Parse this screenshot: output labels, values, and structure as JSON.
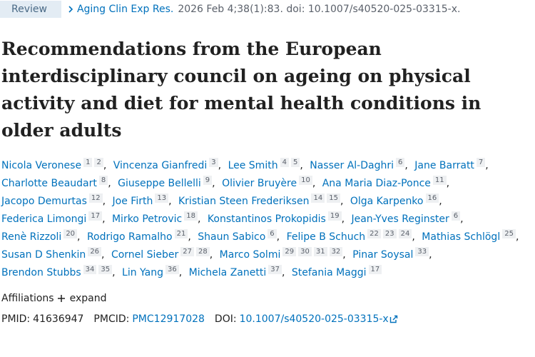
{
  "header": {
    "badge": "Review",
    "journal": "Aging Clin Exp Res.",
    "citation": "2026 Feb 4;38(1):83. doi: 10.1007/s40520-025-03315-x."
  },
  "title": "Recommendations from the European interdisciplinary council on ageing on physical activity and diet for mental health conditions in older adults",
  "authors": [
    {
      "name": "Nicola Veronese",
      "affiliations": [
        "1",
        "2"
      ]
    },
    {
      "name": "Vincenza Gianfredi",
      "affiliations": [
        "3"
      ]
    },
    {
      "name": "Lee Smith",
      "affiliations": [
        "4",
        "5"
      ]
    },
    {
      "name": "Nasser Al-Daghri",
      "affiliations": [
        "6"
      ]
    },
    {
      "name": "Jane Barratt",
      "affiliations": [
        "7"
      ]
    },
    {
      "name": "Charlotte Beaudart",
      "affiliations": [
        "8"
      ]
    },
    {
      "name": "Giuseppe Bellelli",
      "affiliations": [
        "9"
      ]
    },
    {
      "name": "Olivier Bruyère",
      "affiliations": [
        "10"
      ]
    },
    {
      "name": "Ana Maria Diaz-Ponce",
      "affiliations": [
        "11"
      ]
    },
    {
      "name": "Jacopo Demurtas",
      "affiliations": [
        "12"
      ]
    },
    {
      "name": "Joe Firth",
      "affiliations": [
        "13"
      ]
    },
    {
      "name": "Kristian Steen Frederiksen",
      "affiliations": [
        "14",
        "15"
      ]
    },
    {
      "name": "Olga Karpenko",
      "affiliations": [
        "16"
      ]
    },
    {
      "name": "Federica Limongi",
      "affiliations": [
        "17"
      ]
    },
    {
      "name": "Mirko Petrovic",
      "affiliations": [
        "18"
      ]
    },
    {
      "name": "Konstantinos Prokopidis",
      "affiliations": [
        "19"
      ]
    },
    {
      "name": "Jean-Yves Reginster",
      "affiliations": [
        "6"
      ]
    },
    {
      "name": "Renè Rizzoli",
      "affiliations": [
        "20"
      ]
    },
    {
      "name": "Rodrigo Ramalho",
      "affiliations": [
        "21"
      ]
    },
    {
      "name": "Shaun Sabico",
      "affiliations": [
        "6"
      ]
    },
    {
      "name": "Felipe B Schuch",
      "affiliations": [
        "22",
        "23",
        "24"
      ]
    },
    {
      "name": "Mathias Schlögl",
      "affiliations": [
        "25"
      ]
    },
    {
      "name": "Susan D Shenkin",
      "affiliations": [
        "26"
      ]
    },
    {
      "name": "Cornel Sieber",
      "affiliations": [
        "27",
        "28"
      ]
    },
    {
      "name": "Marco Solmi",
      "affiliations": [
        "29",
        "30",
        "31",
        "32"
      ]
    },
    {
      "name": "Pinar Soysal",
      "affiliations": [
        "33"
      ]
    },
    {
      "name": "Brendon Stubbs",
      "affiliations": [
        "34",
        "35"
      ]
    },
    {
      "name": "Lin Yang",
      "affiliations": [
        "36"
      ]
    },
    {
      "name": "Michela Zanetti",
      "affiliations": [
        "37"
      ]
    },
    {
      "name": "Stefania Maggi",
      "affiliations": [
        "17"
      ]
    }
  ],
  "affiliations": {
    "label": "Affiliations",
    "toggle": "expand"
  },
  "identifiers": {
    "pmid_label": "PMID:",
    "pmid": "41636947",
    "pmcid_label": "PMCID:",
    "pmcid": "PMC12917028",
    "doi_label": "DOI:",
    "doi": "10.1007/s40520-025-03315-x"
  }
}
